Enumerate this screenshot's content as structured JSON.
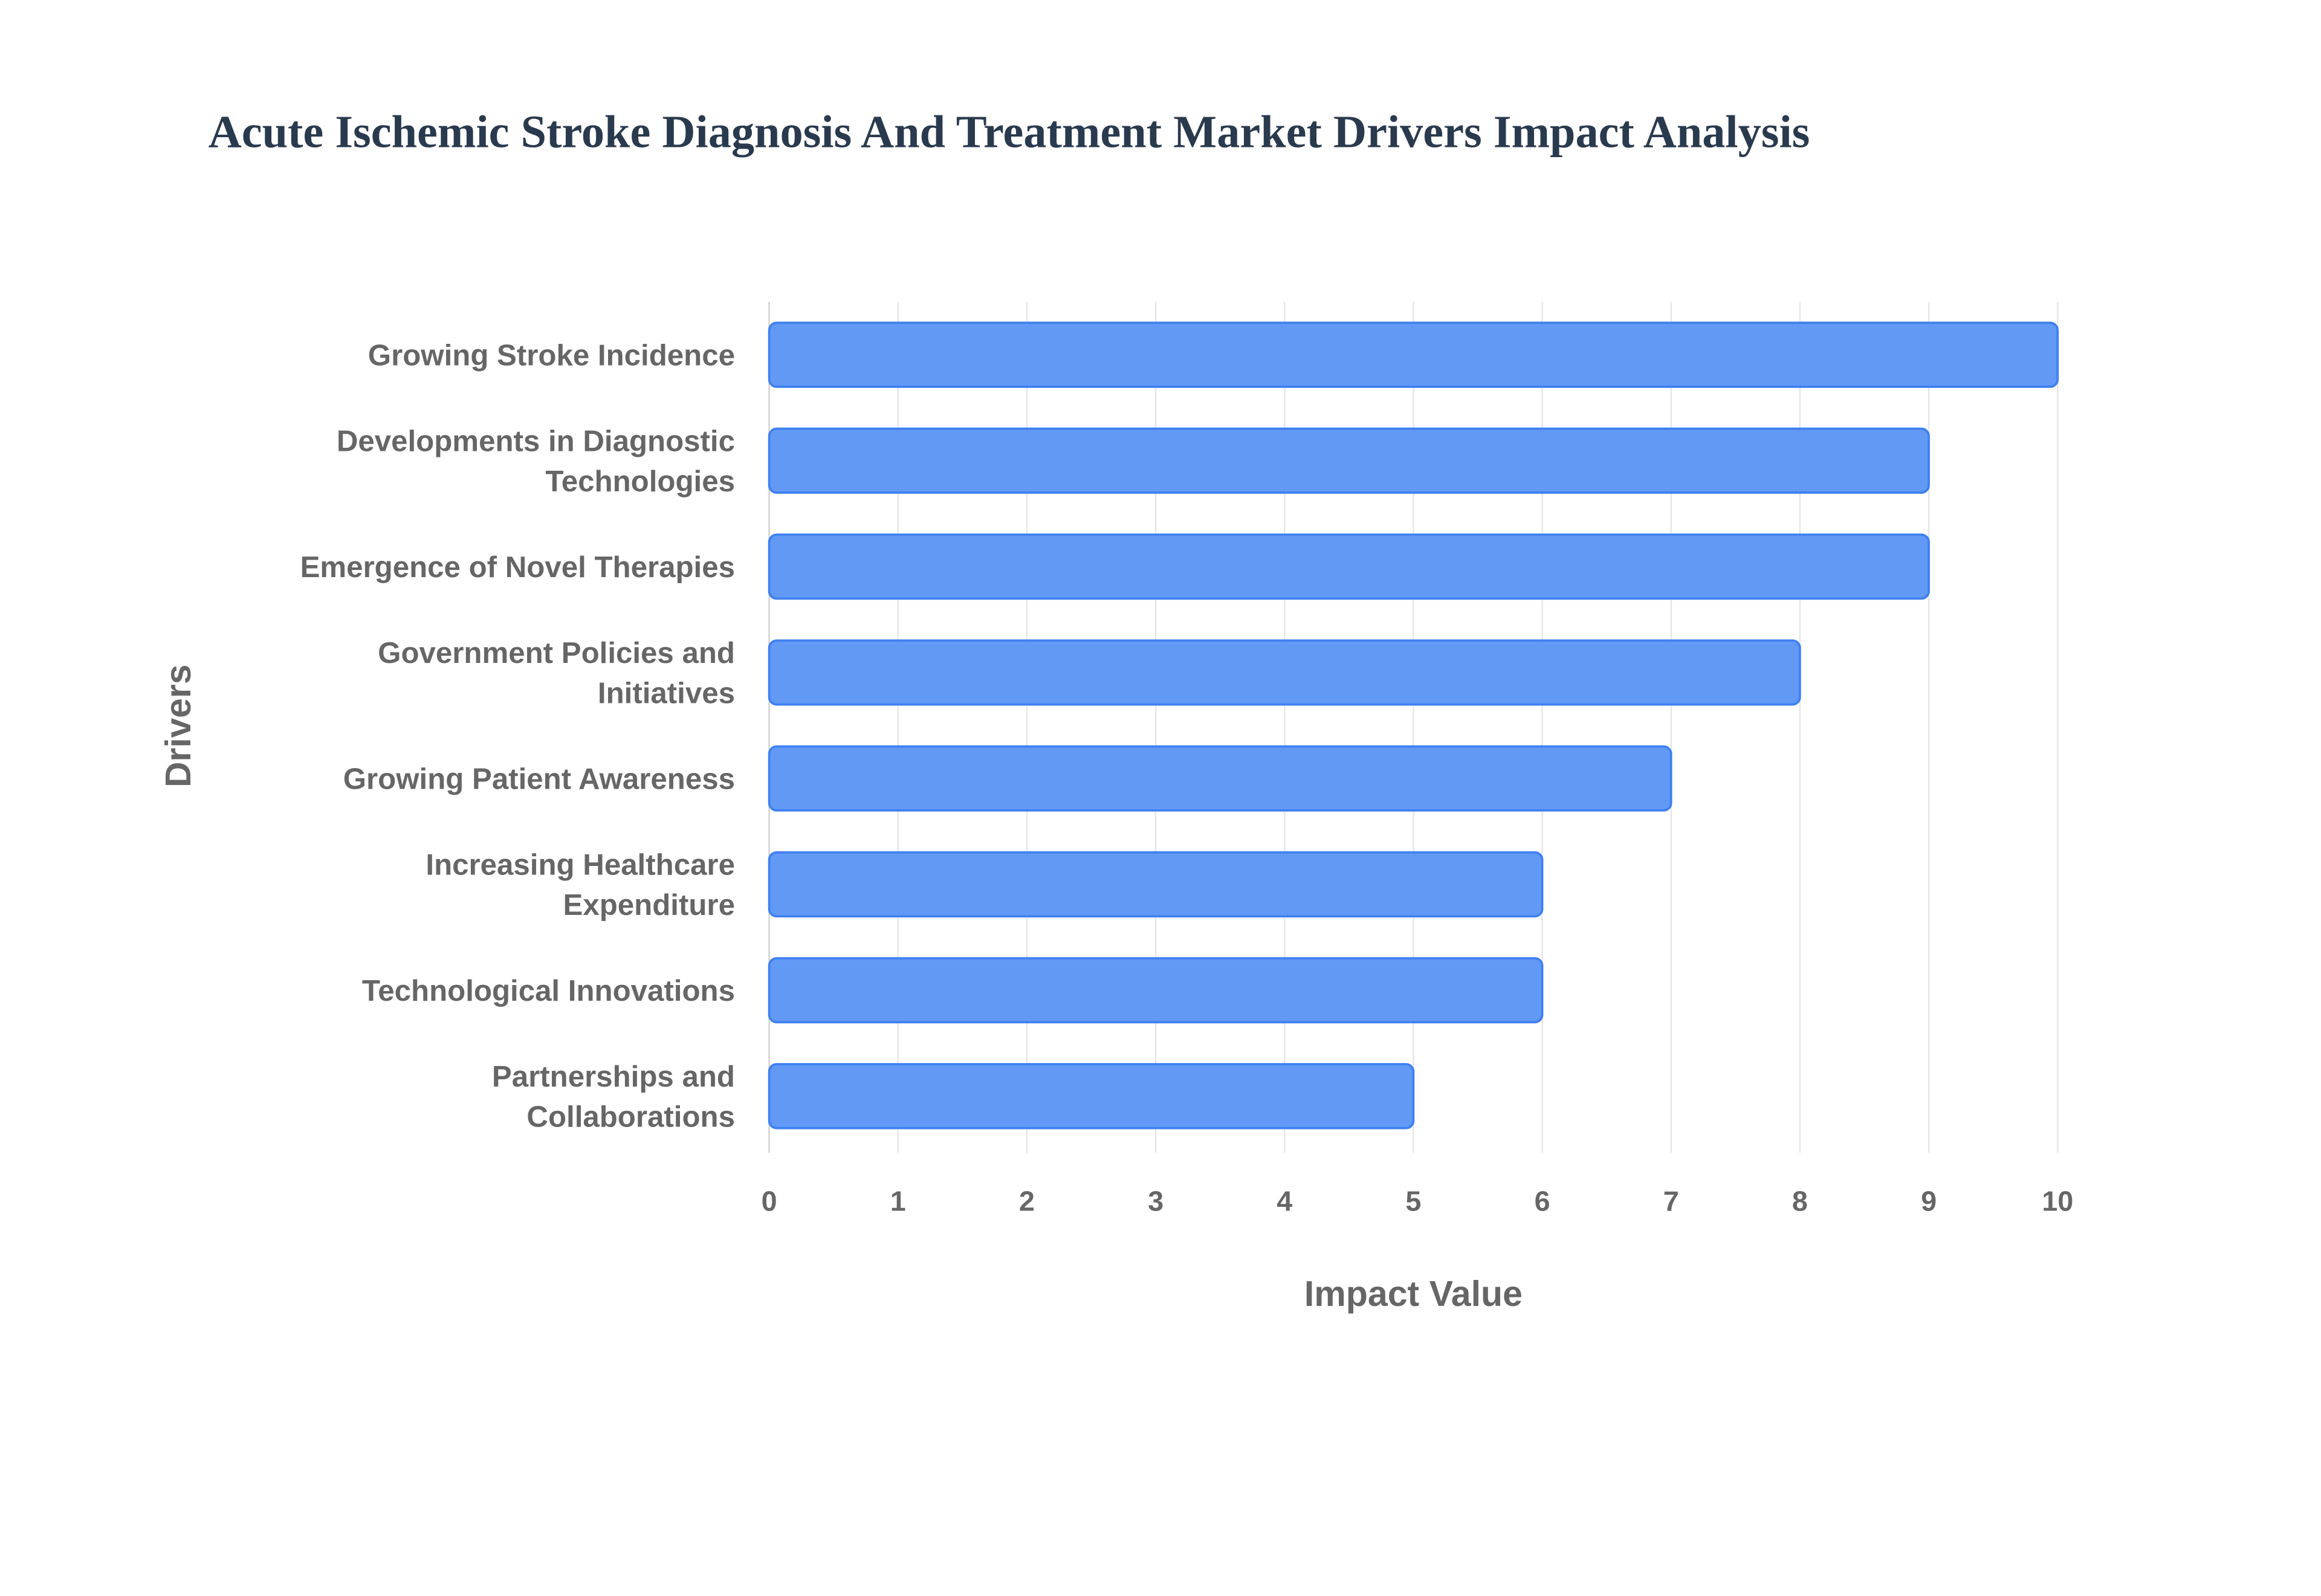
{
  "chart_data": {
    "type": "bar",
    "orientation": "horizontal",
    "title": "Acute Ischemic Stroke Diagnosis And Treatment Market Drivers Impact Analysis",
    "xlabel": "Impact Value",
    "ylabel": "Drivers",
    "xlim": [
      0,
      10
    ],
    "xticks": [
      "0",
      "1",
      "2",
      "3",
      "4",
      "5",
      "6",
      "7",
      "8",
      "9",
      "10"
    ],
    "grid": true,
    "categories": [
      [
        "Growing Stroke Incidence"
      ],
      [
        "Developments in Diagnostic",
        "Technologies"
      ],
      [
        "Emergence of Novel Therapies"
      ],
      [
        "Government Policies and",
        "Initiatives"
      ],
      [
        "Growing Patient Awareness"
      ],
      [
        "Increasing Healthcare",
        "Expenditure"
      ],
      [
        "Technological Innovations"
      ],
      [
        "Partnerships and",
        "Collaborations"
      ]
    ],
    "values": [
      10,
      9,
      9,
      8,
      7,
      6,
      6,
      5
    ],
    "bar_color": "#6199f5",
    "bar_border_color": "#3f80f0"
  }
}
